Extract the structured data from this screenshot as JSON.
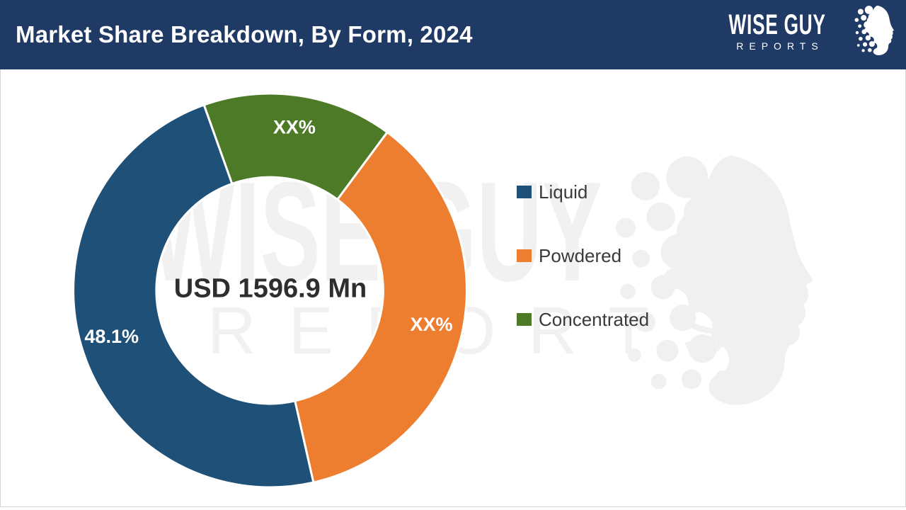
{
  "header": {
    "title": "Market Share Breakdown, By Form, 2024",
    "bg_color": "#203a66",
    "logo": {
      "brand": "WISE GUY",
      "brand_sub": "REPORTS"
    }
  },
  "watermark": {
    "line1": "WISE GUY",
    "line2": "REPORTS"
  },
  "chart_data": {
    "type": "pie",
    "subtype": "donut",
    "title": "Market Share Breakdown, By Form, 2024",
    "center_label": "USD 1596.9 Mn",
    "categories": [
      "Liquid",
      "Powdered",
      "Concentrated"
    ],
    "values": [
      48.1,
      36.3,
      15.6
    ],
    "values_note": "Liquid labeled 48.1%; Powdered and Concentrated masked as XX% (36.3 and 15.6 estimated from arc angles)",
    "display_labels": [
      "48.1%",
      "XX%",
      "XX%"
    ],
    "colors": [
      "#1f5178",
      "#ed7d2f",
      "#4d7a27"
    ],
    "start_angle_deg": 109.6,
    "direction": "counterclockwise",
    "inner_radius_ratio": 0.575,
    "label_color": "#ffffff",
    "legend_position": "right"
  }
}
